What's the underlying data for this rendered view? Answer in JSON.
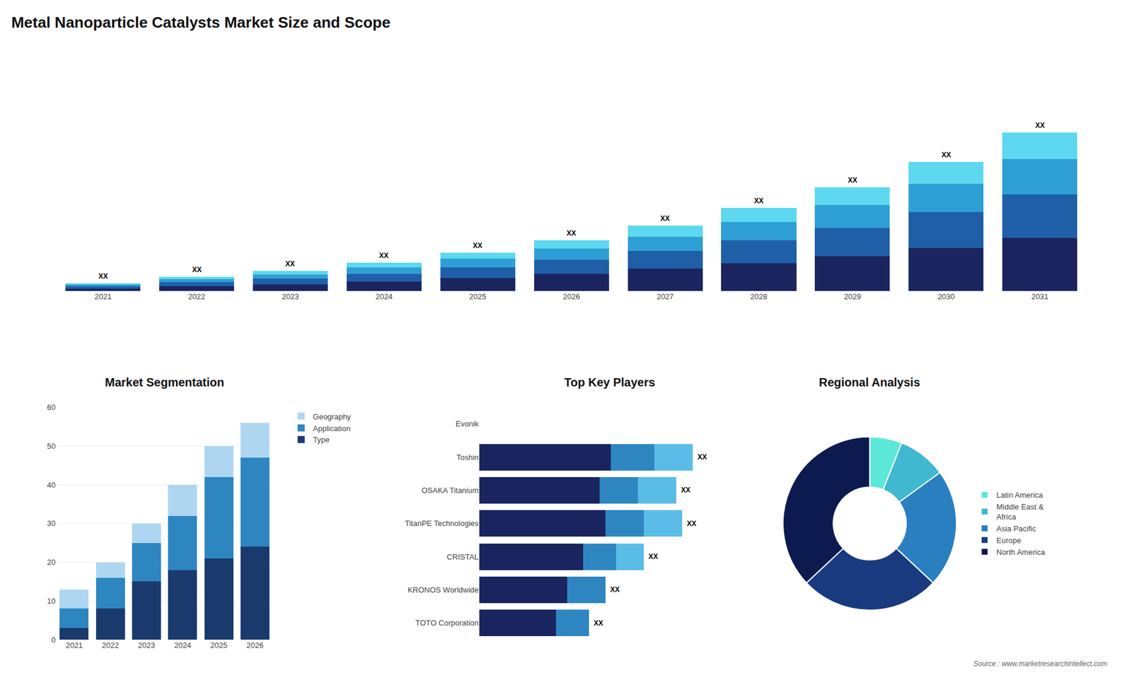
{
  "title": "Metal Nanoparticle Catalysts Market Size and Scope",
  "annotations": [
    "Source : www.marketresearchintellect.com"
  ],
  "chart_data": [
    {
      "type": "bar",
      "stacked": true,
      "categories": [
        "2021",
        "2022",
        "2023",
        "2024",
        "2025",
        "2026",
        "2027",
        "2028",
        "2029",
        "2030",
        "2031"
      ],
      "series": [
        {
          "color": "#1a2560",
          "values": [
            1.0,
            1.8,
            2.5,
            3.5,
            4.8,
            6.2,
            8.0,
            10.0,
            12.5,
            15.5,
            19.0
          ]
        },
        {
          "color": "#1e5fa8",
          "values": [
            0.8,
            1.4,
            2.0,
            2.8,
            3.8,
            5.0,
            6.4,
            8.2,
            10.2,
            12.8,
            15.8
          ]
        },
        {
          "color": "#2e9fd4",
          "values": [
            0.6,
            1.1,
            1.6,
            2.3,
            3.0,
            4.0,
            5.2,
            6.6,
            8.2,
            10.2,
            12.5
          ]
        },
        {
          "color": "#5dd8f0",
          "values": [
            0.4,
            0.8,
            1.2,
            1.7,
            2.3,
            3.0,
            3.9,
            5.0,
            6.3,
            7.8,
            9.6
          ]
        }
      ],
      "ylim": [
        0,
        72.832
      ],
      "tick_labels": "x",
      "grid": false,
      "annotations": [
        {
          "category": "2021",
          "text": "XX"
        },
        {
          "category": "2022",
          "text": "XX"
        },
        {
          "category": "2023",
          "text": "XX"
        },
        {
          "category": "2024",
          "text": "XX"
        },
        {
          "category": "2025",
          "text": "XX"
        },
        {
          "category": "2026",
          "text": "XX"
        },
        {
          "category": "2027",
          "text": "XX"
        },
        {
          "category": "2028",
          "text": "XX"
        },
        {
          "category": "2029",
          "text": "XX"
        },
        {
          "category": "2030",
          "text": "XX"
        },
        {
          "category": "2031",
          "text": "XX"
        }
      ]
    },
    {
      "type": "bar",
      "title": "Market Segmentation",
      "stacked": true,
      "categories": [
        "2021",
        "2022",
        "2023",
        "2024",
        "2025",
        "2026"
      ],
      "series": [
        {
          "name": "Type",
          "color": "#1a3a6e",
          "values": [
            3,
            8,
            15,
            18,
            21,
            24
          ]
        },
        {
          "name": "Application",
          "color": "#2e86c1",
          "values": [
            5,
            8,
            10,
            14,
            21,
            23
          ]
        },
        {
          "name": "Geography",
          "color": "#aed6f1",
          "values": [
            5,
            4,
            5,
            8,
            8,
            9
          ]
        }
      ],
      "ylim": [
        0,
        60
      ],
      "yticks": [
        0,
        10,
        20,
        30,
        40,
        50,
        60
      ],
      "grid": true,
      "legend": "right"
    },
    {
      "type": "bar",
      "title": "Top Key Players",
      "orientation": "horizontal",
      "stacked": true,
      "categories": [
        "Evonik",
        "Toshin",
        "OSAKA Titanium",
        "TitanPE Technologies",
        "CRISTAL",
        "KRONOS Worldwide",
        "TOTO Corporation"
      ],
      "series": [
        {
          "color": "#1a2560",
          "values": [
            0,
            48,
            44,
            46,
            38,
            32,
            28
          ]
        },
        {
          "color": "#2e86c1",
          "values": [
            0,
            16,
            14,
            14,
            12,
            14,
            12
          ]
        },
        {
          "color": "#5abde8",
          "values": [
            0,
            14,
            14,
            14,
            10,
            0,
            0
          ]
        }
      ],
      "xlim": [
        0,
        95
      ],
      "tick_labels": "y",
      "grid": false,
      "annotations": [
        {
          "category": "Toshin",
          "text": "XX"
        },
        {
          "category": "OSAKA Titanium",
          "text": "XX"
        },
        {
          "category": "TitanPE Technologies",
          "text": "XX"
        },
        {
          "category": "CRISTAL",
          "text": "XX"
        },
        {
          "category": "KRONOS Worldwide",
          "text": "XX"
        },
        {
          "category": "TOTO Corporation",
          "text": "XX"
        }
      ]
    },
    {
      "type": "donut",
      "title": "Regional Analysis",
      "categories": [
        "Latin America",
        "Middle East &\nAfrica",
        "Asia Pacific",
        "Europe",
        "North America"
      ],
      "values": [
        6,
        9,
        22,
        26,
        37
      ],
      "colors": [
        "#5ce8d8",
        "#40b8d0",
        "#2a7fc0",
        "#1a3a80",
        "#0d1a50"
      ],
      "legend": "right"
    }
  ]
}
